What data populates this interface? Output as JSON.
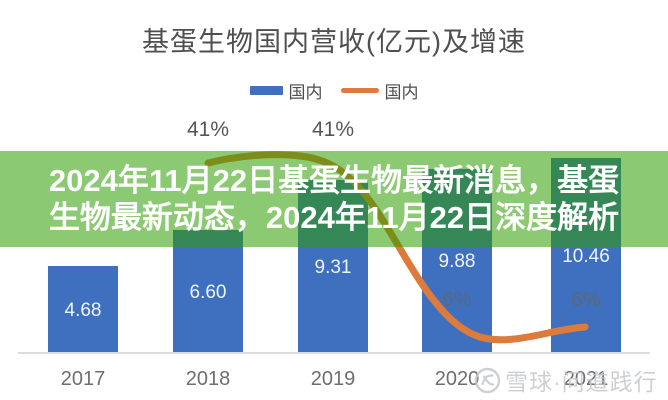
{
  "chart_data": {
    "type": "bar",
    "title": "基蛋生物国内营收(亿元)及增速",
    "categories": [
      "2017",
      "2018",
      "2019",
      "2020",
      "2021"
    ],
    "series": [
      {
        "name": "国内",
        "type": "bar",
        "color": "#3E70BF",
        "values": [
          4.68,
          6.6,
          9.31,
          9.88,
          10.46
        ],
        "value_labels": [
          "4.68",
          "6.60",
          "9.31",
          "9.88",
          "10.46"
        ]
      },
      {
        "name": "国内",
        "type": "line",
        "color": "#DC7B3B",
        "growth_labels": [
          {
            "category": "2018",
            "label": "41%",
            "level": "high"
          },
          {
            "category": "2019",
            "label": "41%",
            "level": "high"
          },
          {
            "category": "2020",
            "label": "6%",
            "level": "low"
          },
          {
            "category": "2021",
            "label": "6%",
            "level": "low"
          }
        ]
      }
    ],
    "legend": [
      {
        "label": "国内",
        "swatch": "bar",
        "color": "#3E70BF"
      },
      {
        "label": "国内",
        "swatch": "line",
        "color": "#DC7B3B"
      }
    ],
    "ylabel": "亿元",
    "grid": "off",
    "legend_position": "top-center"
  },
  "overlay": {
    "line1": "2024年11月22日基蛋生物最新消息，基蛋",
    "line2": "生物最新动态，2024年11月22日深度解析",
    "background": "rgba(46,157,0,0.55)",
    "text_color": "#ffffff"
  },
  "watermark": {
    "logo": "xueqiu-snowball-logo",
    "text": "雪球·问道践行"
  },
  "colors": {
    "bar": "#3E70BF",
    "line": "#DC7B3B",
    "title_text": "#4f4f4f",
    "axis_label": "#6e6e6e",
    "growth_high": "#565656",
    "growth_low": "#5b6879",
    "watermark": "#c5c8cc",
    "background": "#ffffff"
  }
}
